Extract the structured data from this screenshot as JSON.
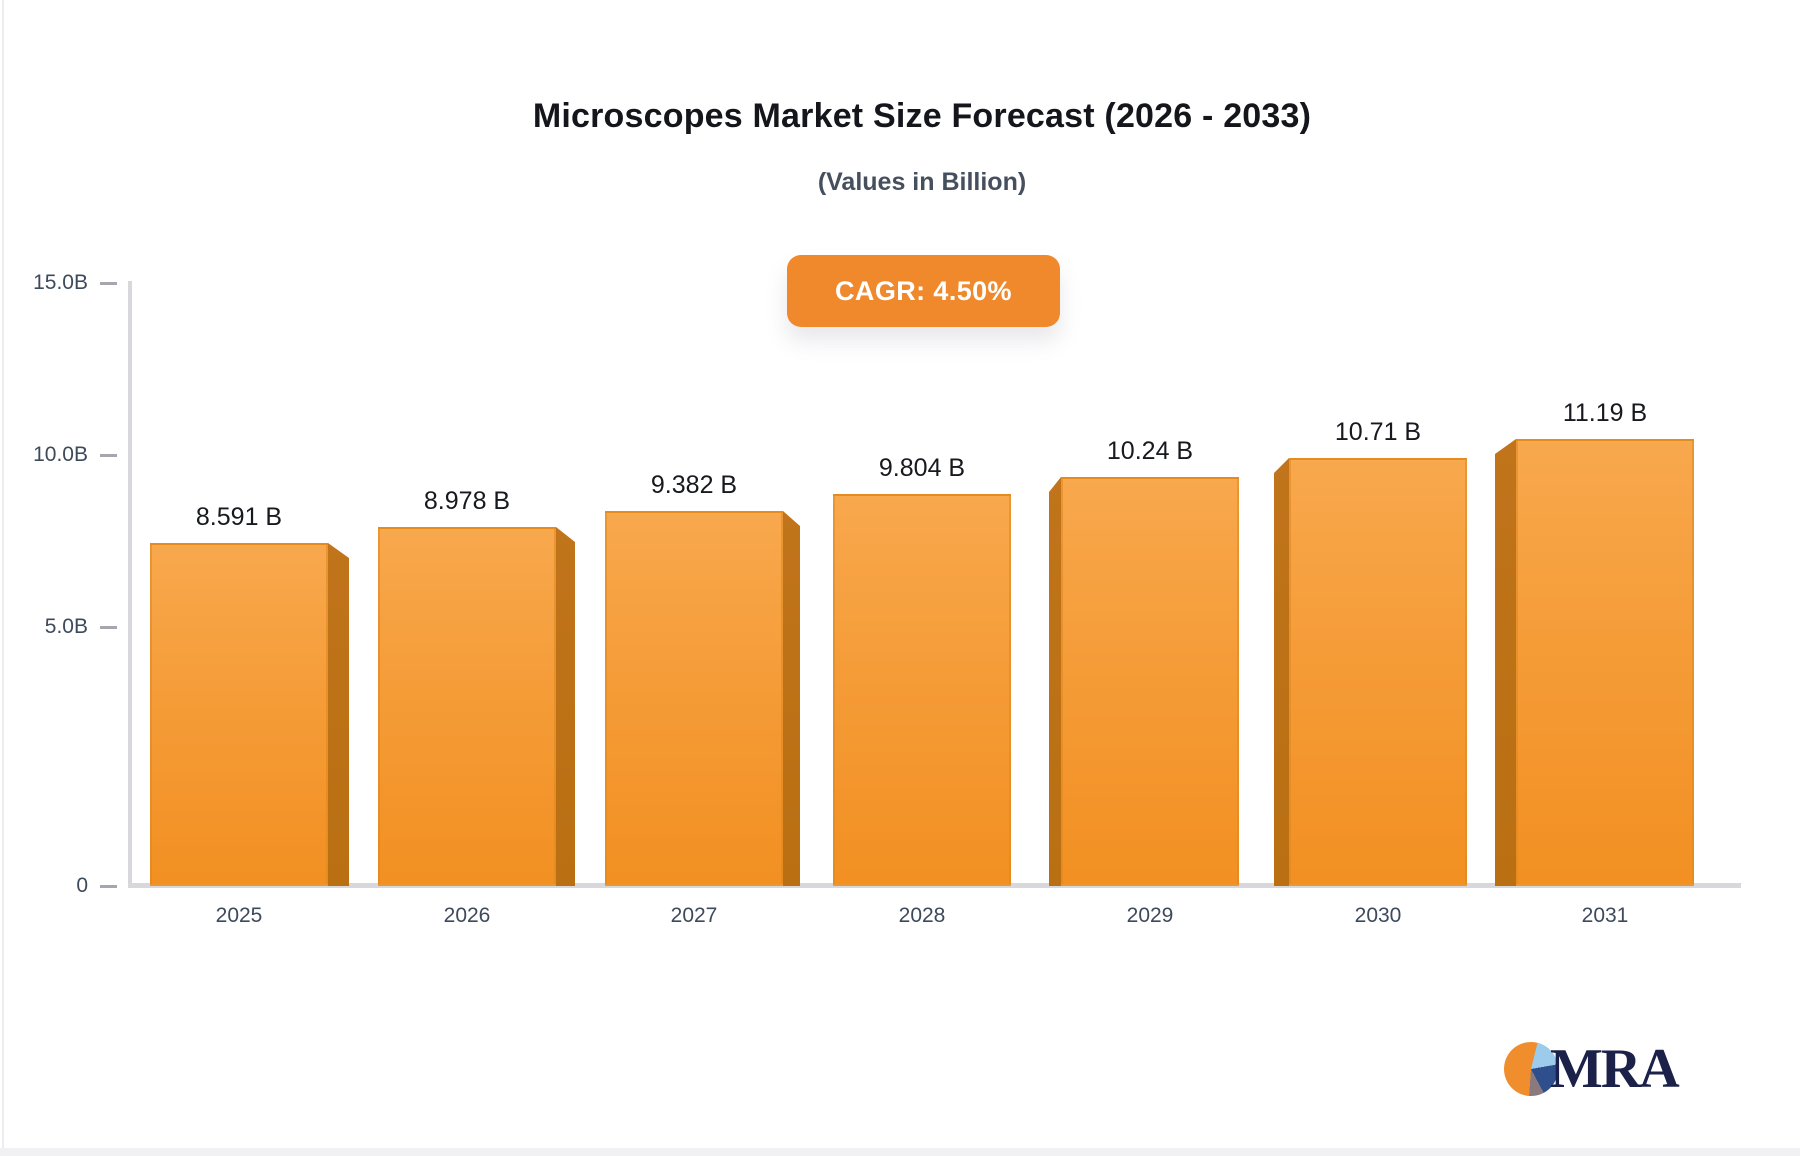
{
  "header": {
    "title": "Microscopes Market Size Forecast (2026 - 2033)",
    "subtitle": "(Values in Billion)",
    "cagr_badge": "CAGR: 4.50%"
  },
  "chart_data": {
    "type": "bar",
    "title": "Microscopes Market Size Forecast (2026 - 2033)",
    "subtitle": "(Values in Billion)",
    "annotation": "CAGR: 4.50%",
    "categories": [
      "2025",
      "2026",
      "2027",
      "2028",
      "2029",
      "2030",
      "2031"
    ],
    "values": [
      8.591,
      8.978,
      9.382,
      9.804,
      10.24,
      10.71,
      11.19
    ],
    "value_labels": [
      "8.591 B",
      "8.978 B",
      "9.382 B",
      "9.804 B",
      "10.24 B",
      "10.71 B",
      "11.19 B"
    ],
    "y_ticks": [
      {
        "label": "15.0B",
        "value": 15
      },
      {
        "label": "10.0B",
        "value": 10
      },
      {
        "label": "5.0B",
        "value": 5
      },
      {
        "label": "0",
        "value": 0
      }
    ],
    "ylim": [
      0,
      15
    ],
    "xlabel": "",
    "ylabel": "",
    "grid": false,
    "legend_position": "none",
    "bar_style": "3d-perspective",
    "bar_color_top": "#F8A84D",
    "bar_color_bottom": "#F29022",
    "bar_side_color": "#BD7018"
  },
  "logo": {
    "text": "MRA",
    "icon": "pie-chart-icon"
  },
  "colors": {
    "badge_bg": "#F0892C",
    "badge_text": "#FFFFFF",
    "title": "#15161B",
    "subtitle": "#464F5E",
    "axis_label": "#3D4A5C",
    "value_label": "#17191E",
    "axis_line": "#D7D7DC",
    "logo_text": "#1B2148"
  }
}
